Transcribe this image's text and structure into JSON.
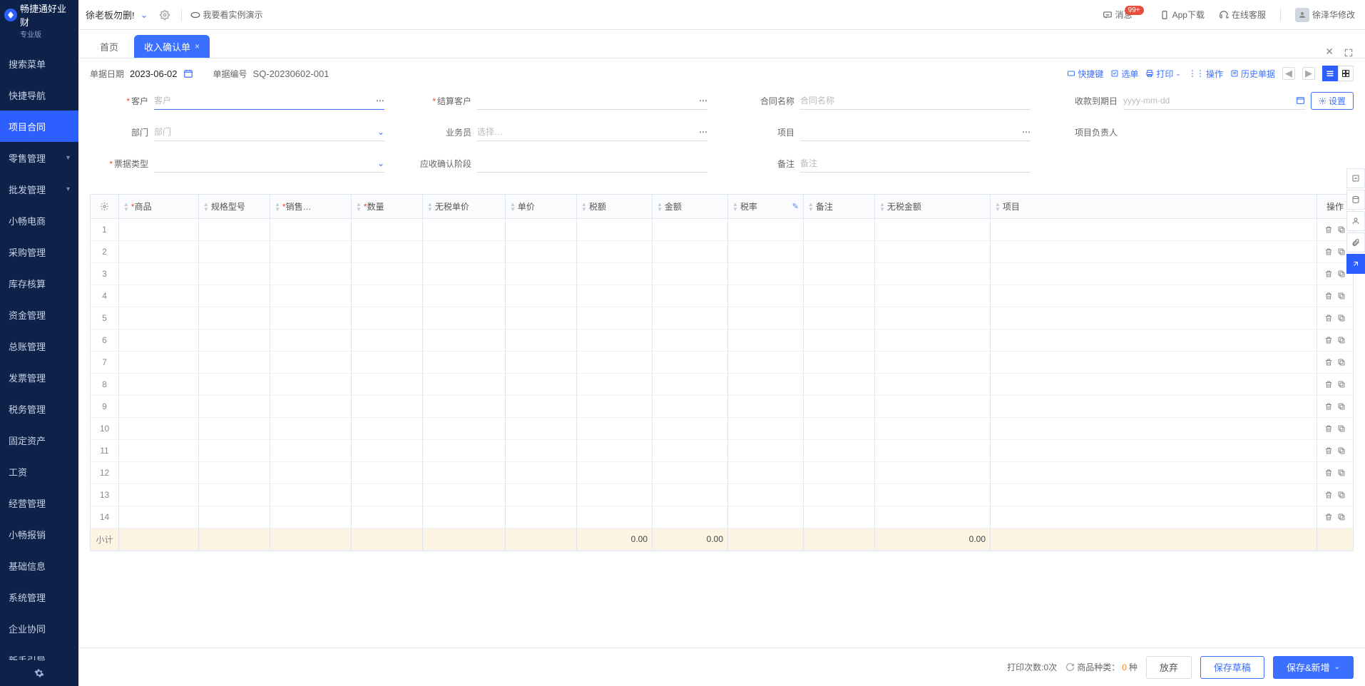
{
  "product": {
    "name": "畅捷通好业财",
    "edition": "专业版"
  },
  "topbar": {
    "account": "徐老板勿删!",
    "demo": "我要看实例演示",
    "messages": {
      "label": "消息",
      "badge": "99+"
    },
    "appDownload": "App下载",
    "support": "在线客服",
    "user": "徐泽华修改"
  },
  "sidebar": {
    "items": [
      {
        "label": "搜索菜单",
        "expandable": false
      },
      {
        "label": "快捷导航",
        "expandable": false
      },
      {
        "label": "项目合同",
        "expandable": false,
        "active": true
      },
      {
        "label": "零售管理",
        "expandable": true
      },
      {
        "label": "批发管理",
        "expandable": true
      },
      {
        "label": "小畅电商",
        "expandable": false
      },
      {
        "label": "采购管理",
        "expandable": false
      },
      {
        "label": "库存核算",
        "expandable": false
      },
      {
        "label": "资金管理",
        "expandable": false
      },
      {
        "label": "总账管理",
        "expandable": false
      },
      {
        "label": "发票管理",
        "expandable": false
      },
      {
        "label": "税务管理",
        "expandable": false
      },
      {
        "label": "固定资产",
        "expandable": false
      },
      {
        "label": "工资",
        "expandable": false
      },
      {
        "label": "经营管理",
        "expandable": false
      },
      {
        "label": "小畅报销",
        "expandable": false
      },
      {
        "label": "基础信息",
        "expandable": false
      },
      {
        "label": "系统管理",
        "expandable": false
      },
      {
        "label": "企业协同",
        "expandable": false
      },
      {
        "label": "新手引导",
        "expandable": false
      }
    ]
  },
  "tabs": [
    {
      "label": "首页",
      "active": false,
      "closable": false
    },
    {
      "label": "收入确认单",
      "active": true,
      "closable": true
    }
  ],
  "docHeader": {
    "dateLabel": "单据日期",
    "date": "2023-06-02",
    "docNoLabel": "单据编号",
    "docNo": "SQ-20230602-001",
    "actions": {
      "shortcut": "快捷键",
      "selectDoc": "选单",
      "print": "打印",
      "ops": "操作",
      "history": "历史单据"
    }
  },
  "form": {
    "customer": {
      "label": "客户",
      "placeholder": "客户"
    },
    "settleCustomer": {
      "label": "结算客户",
      "placeholder": ""
    },
    "contractName": {
      "label": "合同名称",
      "placeholder": "合同名称"
    },
    "dueDate": {
      "label": "收款到期日",
      "placeholder": "yyyy-mm-dd"
    },
    "dept": {
      "label": "部门",
      "placeholder": "部门"
    },
    "salesman": {
      "label": "业务员",
      "placeholder": "选择…"
    },
    "project": {
      "label": "项目",
      "placeholder": ""
    },
    "manager": {
      "label": "项目负责人",
      "placeholder": ""
    },
    "invoiceType": {
      "label": "票据类型",
      "placeholder": ""
    },
    "confirmStage": {
      "label": "应收确认阶段",
      "placeholder": ""
    },
    "memo": {
      "label": "备注",
      "placeholder": "备注"
    },
    "settingsBtn": "设置"
  },
  "table": {
    "columns": {
      "product": "商品",
      "spec": "规格型号",
      "sale": "销售…",
      "qty": "数量",
      "noTaxPrice": "无税单价",
      "price": "单价",
      "taxAmount": "税额",
      "amount": "金额",
      "taxRate": "税率",
      "memo": "备注",
      "noTaxAmount": "无税金额",
      "project": "项目",
      "ops": "操作"
    },
    "rowCount": 14,
    "subtotal": {
      "label": "小计",
      "taxAmount": "0.00",
      "amount": "0.00",
      "noTaxAmount": "0.00"
    }
  },
  "footer": {
    "printCount": "打印次数:0次",
    "itemKindsLabel": "商品种类：",
    "itemKindsValue": "0",
    "itemKindsUnit": " 种",
    "discard": "放弃",
    "saveDraft": "保存草稿",
    "saveNew": "保存&新增"
  }
}
